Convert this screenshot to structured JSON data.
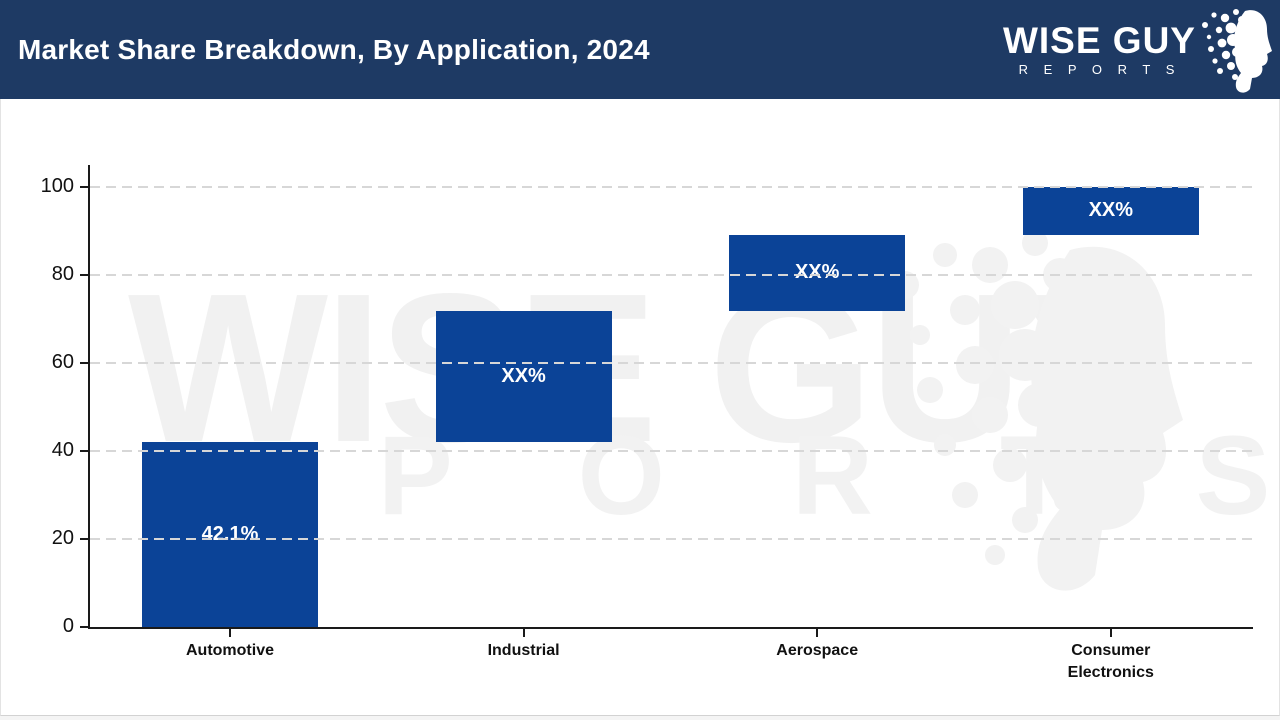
{
  "header": {
    "title": "Market Share Breakdown, By Application, 2024",
    "brand": {
      "line1": "WISE GUY",
      "line2": "R E P O R T S"
    }
  },
  "watermark": {
    "line1": "WISE GUY",
    "line2": "P O R T S"
  },
  "chart_data": {
    "type": "bar",
    "subtype": "waterfall",
    "title": "Market Share Breakdown, By Application, 2024",
    "categories": [
      "Automotive",
      "Industrial",
      "Aerospace",
      "Consumer Electronics"
    ],
    "segments": [
      {
        "category": "Automotive",
        "start": 0,
        "end": 42.1,
        "label": "42.1%"
      },
      {
        "category": "Industrial",
        "start": 42.1,
        "end": 71.8,
        "label": "XX%"
      },
      {
        "category": "Aerospace",
        "start": 71.8,
        "end": 89.2,
        "label": "XX%"
      },
      {
        "category": "Consumer Electronics",
        "start": 89.2,
        "end": 100,
        "label": "XX%"
      }
    ],
    "ylabel": "",
    "xlabel": "",
    "ylim": [
      0,
      100
    ],
    "yticks": [
      0,
      20,
      40,
      60,
      80,
      100
    ],
    "grid": "horizontal-dashed",
    "legend": "none",
    "bar_color": "#0b4397",
    "label_color": "#ffffff"
  }
}
